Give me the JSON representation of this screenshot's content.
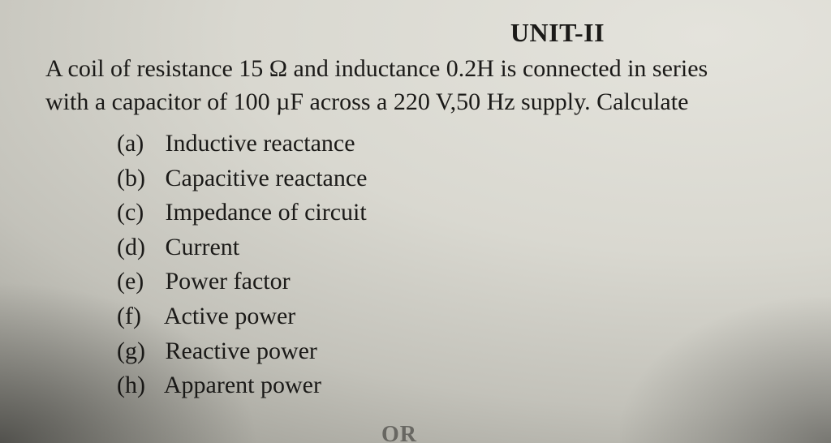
{
  "colors": {
    "text": "#1b1a18",
    "paper_light": "#e4e3dc",
    "paper_mid": "#c3c2ba",
    "paper_dark": "#6e6e68"
  },
  "typography": {
    "family": "Times New Roman, serif",
    "title_size_pt": 24,
    "body_size_pt": 22
  },
  "unit_title": "UNIT-II",
  "question_line1": "A coil of resistance 15 Ω and inductance 0.2H is connected in series",
  "question_line2": "with a capacitor of 100 µF across a 220 V,50 Hz supply. Calculate",
  "items": [
    {
      "marker": "(a)",
      "text": "Inductive reactance"
    },
    {
      "marker": "(b)",
      "text": "Capacitive reactance"
    },
    {
      "marker": "(c)",
      "text": "Impedance of circuit"
    },
    {
      "marker": "(d)",
      "text": "Current"
    },
    {
      "marker": "(e)",
      "text": "Power factor"
    },
    {
      "marker": "(f)",
      "text": "Active power"
    },
    {
      "marker": "(g)",
      "text": "Reactive power"
    },
    {
      "marker": "(h)",
      "text": "Apparent power"
    }
  ],
  "cutoff_text": "OR"
}
